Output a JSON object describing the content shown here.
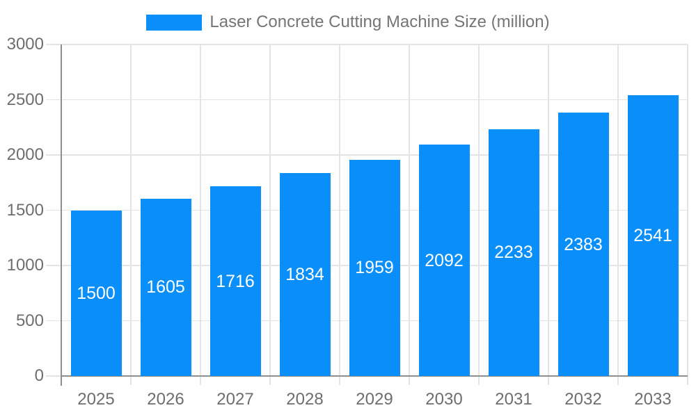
{
  "chart_data": {
    "type": "bar",
    "title": "Laser Concrete Cutting Machine Size (million)",
    "legend": [
      "Laser Concrete Cutting Machine Size (million)"
    ],
    "legend_position": "top-center",
    "categories": [
      "2025",
      "2026",
      "2027",
      "2028",
      "2029",
      "2030",
      "2031",
      "2032",
      "2033"
    ],
    "series": [
      {
        "name": "Laser Concrete Cutting Machine Size (million)",
        "values": [
          1500,
          1605,
          1716,
          1834,
          1959,
          2092,
          2233,
          2383,
          2541
        ]
      }
    ],
    "value_labels_shown": true,
    "xlabel": "",
    "ylabel": "",
    "ylim": [
      0,
      3000
    ],
    "ytick_step": 500,
    "yticks": [
      0,
      500,
      1000,
      1500,
      2000,
      2500,
      3000
    ],
    "grid": true,
    "bar_color": "#0a8ffa",
    "value_label_color": "#ffffff",
    "tick_label_color": "#6e6e6e",
    "legend_text_color": "#757575"
  }
}
